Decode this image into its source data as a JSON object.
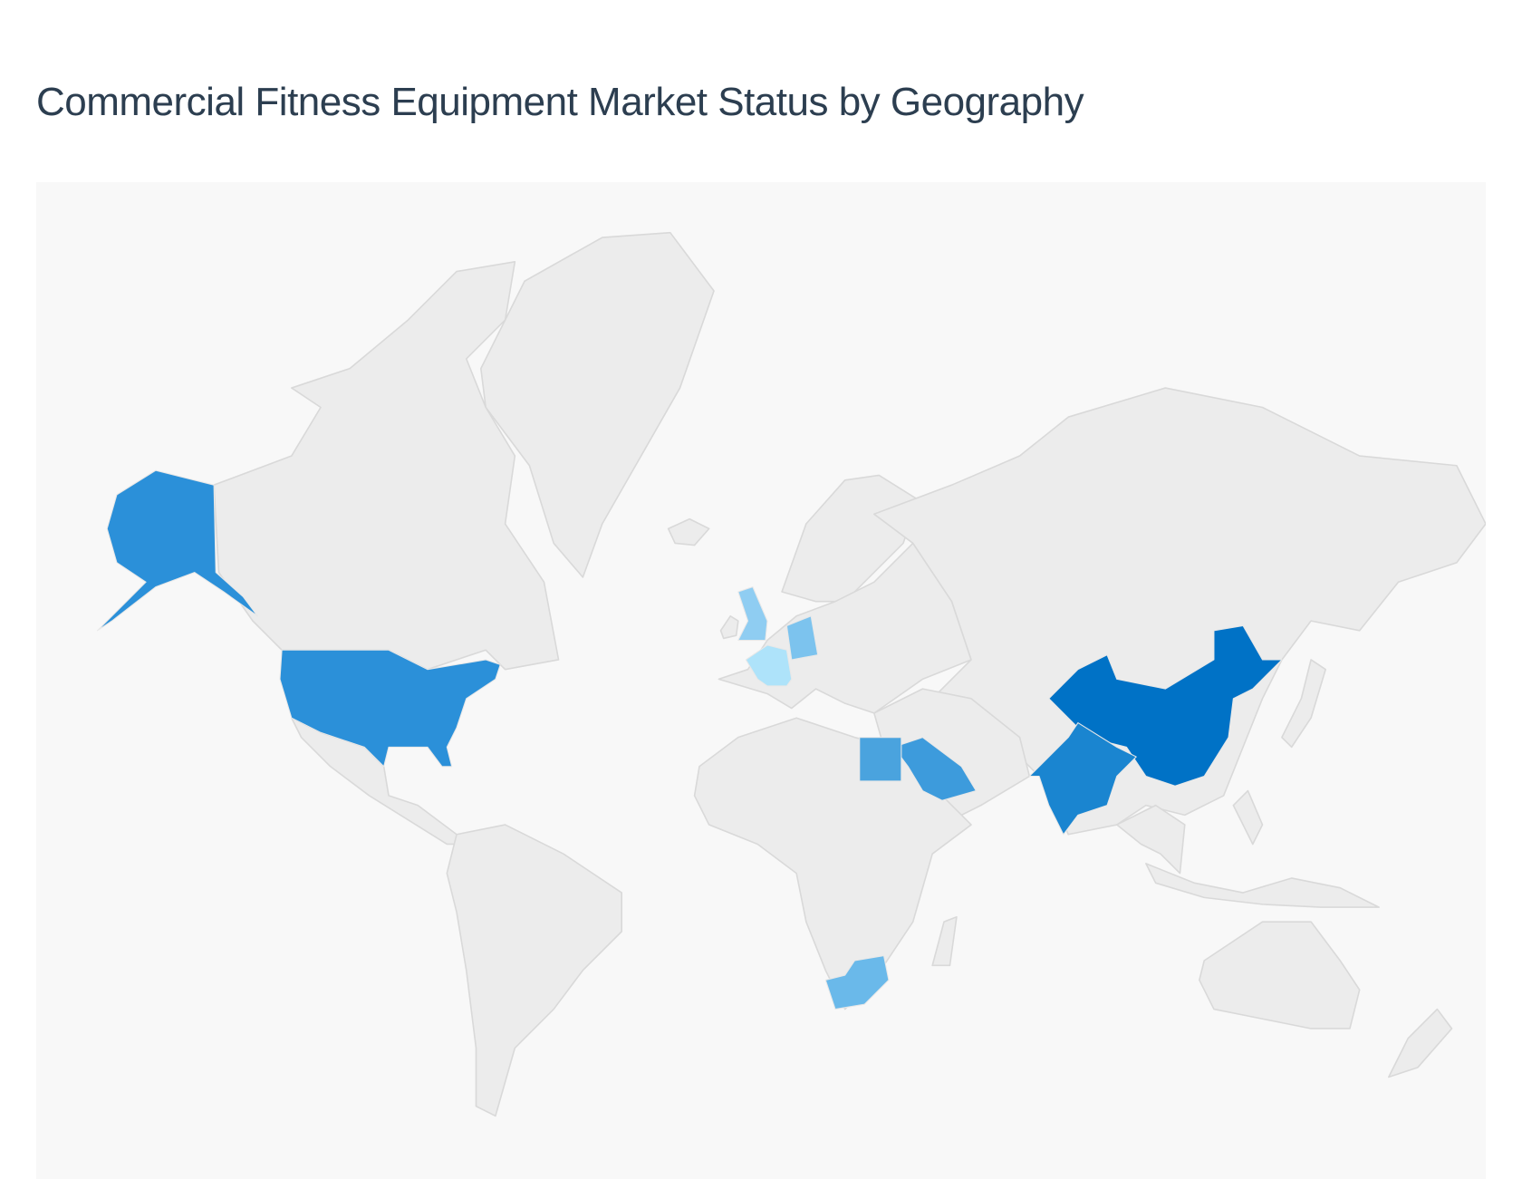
{
  "title": "Commercial Fitness Equipment Market Status by Geography",
  "map": {
    "type": "choropleth",
    "base_color": "#ececec",
    "background": "#f8f8f8",
    "highlighted_regions": [
      {
        "name": "United States",
        "color": "#2b90d9"
      },
      {
        "name": "China",
        "color": "#0072c6"
      },
      {
        "name": "India",
        "color": "#1a85d0"
      },
      {
        "name": "Saudi Arabia",
        "color": "#3d9bdc"
      },
      {
        "name": "Egypt",
        "color": "#4aa3de"
      },
      {
        "name": "South Africa",
        "color": "#6ab9ea"
      },
      {
        "name": "Germany",
        "color": "#7cc3ee"
      },
      {
        "name": "United Kingdom",
        "color": "#8fcdf2"
      },
      {
        "name": "France",
        "color": "#aee3fa"
      }
    ]
  }
}
